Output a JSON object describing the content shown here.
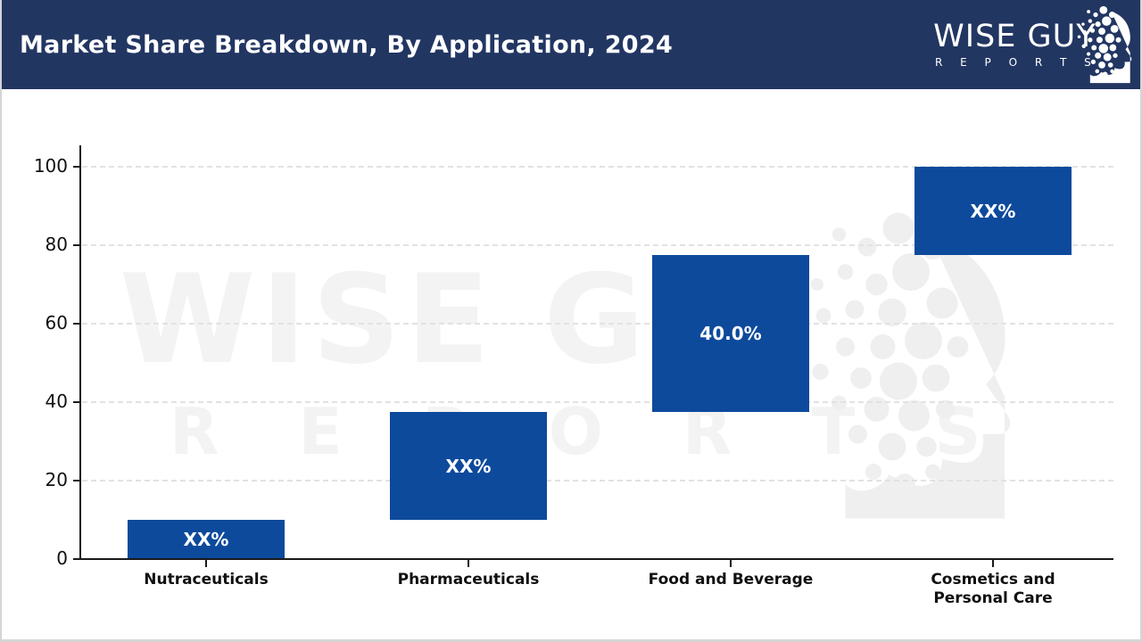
{
  "header": {
    "title": "Market Share Breakdown, By Application, 2024"
  },
  "logo": {
    "line1": "WISE GUY",
    "line2": "R E P O R T S"
  },
  "watermark": {
    "line1": "WISE GU",
    "line2": "R E P O R T S"
  },
  "chart_data": {
    "type": "bar",
    "subtype": "waterfall",
    "title": "Market Share Breakdown, By Application, 2024",
    "categories": [
      "Nutraceuticals",
      "Pharmaceuticals",
      "Food and Beverage",
      "Cosmetics and Personal Care"
    ],
    "segments": [
      {
        "category": "Nutraceuticals",
        "start": 0,
        "end": 10,
        "value_pct": 10,
        "label": "XX%"
      },
      {
        "category": "Pharmaceuticals",
        "start": 10,
        "end": 37.5,
        "value_pct": 27.5,
        "label": "XX%"
      },
      {
        "category": "Food and Beverage",
        "start": 37.5,
        "end": 77.5,
        "value_pct": 40.0,
        "label": "40.0%"
      },
      {
        "category": "Cosmetics and Personal Care",
        "start": 77.5,
        "end": 100,
        "value_pct": 22.5,
        "label": "XX%"
      }
    ],
    "xlabel": "",
    "ylabel": "",
    "ylim": [
      0,
      100
    ],
    "yticks": [
      0,
      20,
      40,
      60,
      80,
      100
    ],
    "grid": "horizontal-dashed",
    "legend": "none",
    "bar_color": "#0d4a9c",
    "bar_label_color": "#ffffff"
  },
  "colors": {
    "header_bg": "#223662",
    "bar": "#0d4a9c",
    "axis": "#1a1a1a",
    "grid": "#e2e2e2",
    "watermark": "#f3f3f3",
    "frame_border": "#d5d5d5",
    "text": "#111111",
    "title_text": "#ffffff"
  }
}
